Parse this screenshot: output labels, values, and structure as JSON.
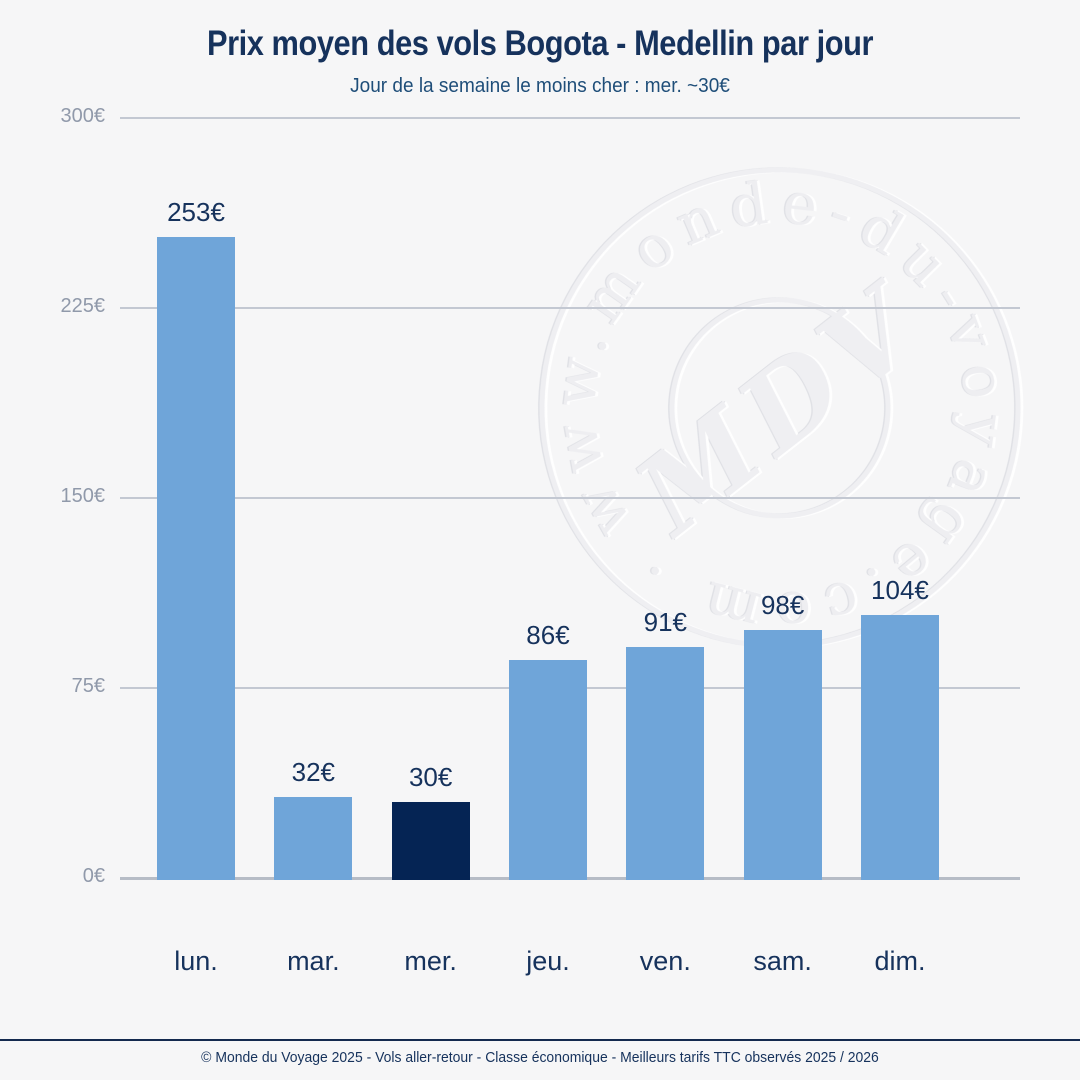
{
  "header": {
    "title": "Prix moyen des vols Bogota - Medellin par jour",
    "subtitle": "Jour de la semaine le moins cher : mer. ~30€"
  },
  "chart_data": {
    "type": "bar",
    "categories": [
      "lun.",
      "mar.",
      "mer.",
      "jeu.",
      "ven.",
      "sam.",
      "dim."
    ],
    "values": [
      253,
      32,
      30,
      86,
      91,
      98,
      104
    ],
    "value_labels": [
      "253€",
      "32€",
      "30€",
      "86€",
      "91€",
      "98€",
      "104€"
    ],
    "highlight_index": 2,
    "title": "Prix moyen des vols Bogota - Medellin par jour",
    "subtitle": "Jour de la semaine le moins cher : mer. ~30€",
    "xlabel": "",
    "ylabel": "",
    "ylim": [
      0,
      300
    ],
    "yticks": [
      {
        "value": 300,
        "label": "300€"
      },
      {
        "value": 225,
        "label": "225€"
      },
      {
        "value": 150,
        "label": "150€"
      },
      {
        "value": 75,
        "label": "75€"
      },
      {
        "value": 0,
        "label": "0€"
      }
    ],
    "grid": true,
    "legend": null,
    "bar_color": "#6fa5d9",
    "highlight_color": "#052454"
  },
  "watermark": {
    "ring_text": "www.monde-du-voyage.com ·",
    "center_text": "MDV"
  },
  "footer": {
    "text": "© Monde du Voyage 2025 - Vols aller-retour - Classe économique - Meilleurs tarifs TTC observés 2025 / 2026"
  }
}
